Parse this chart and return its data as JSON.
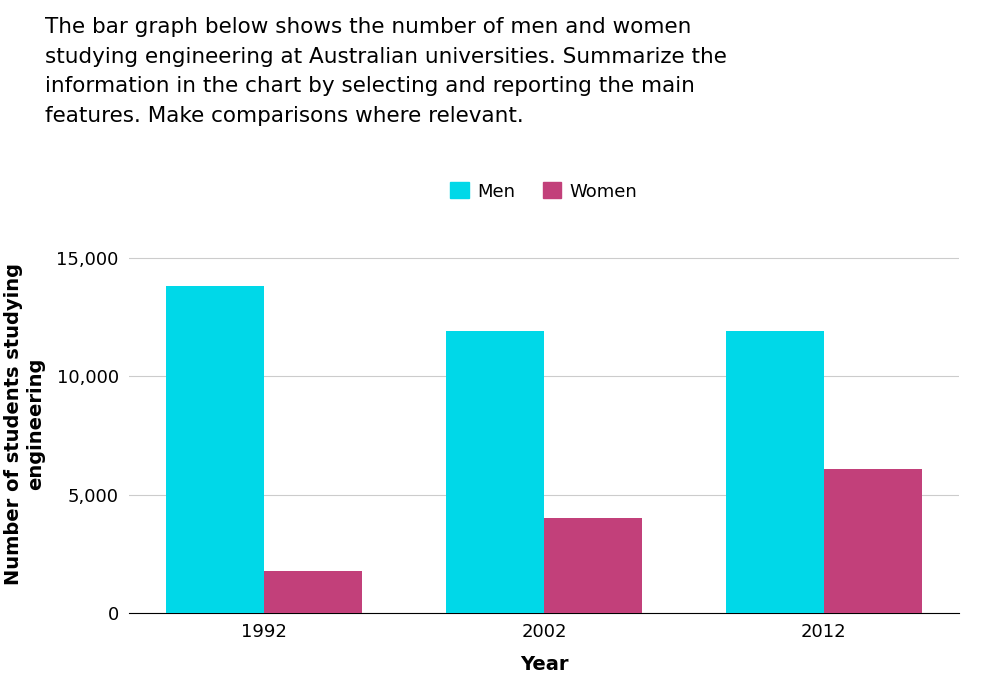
{
  "title_text": "The bar graph below shows the number of men and women\nstudying engineering at Australian universities. Summarize the\ninformation in the chart by selecting and reporting the main\nfeatures. Make comparisons where relevant.",
  "years": [
    "1992",
    "2002",
    "2012"
  ],
  "men_values": [
    13800,
    11900,
    11900
  ],
  "women_values": [
    1800,
    4000,
    6100
  ],
  "men_color": "#00D8E8",
  "women_color": "#C2407A",
  "xlabel": "Year",
  "ylabel": "Number of students studying\nengineering",
  "ylim": [
    0,
    16000
  ],
  "yticks": [
    0,
    5000,
    10000,
    15000
  ],
  "ytick_labels": [
    "0",
    "5,000",
    "10,000",
    "15,000"
  ],
  "bar_width": 0.35,
  "legend_labels": [
    "Men",
    "Women"
  ],
  "background_color": "#ffffff",
  "title_fontsize": 15.5,
  "axis_label_fontsize": 14,
  "tick_fontsize": 13,
  "legend_fontsize": 13,
  "grid_color": "#cccccc"
}
